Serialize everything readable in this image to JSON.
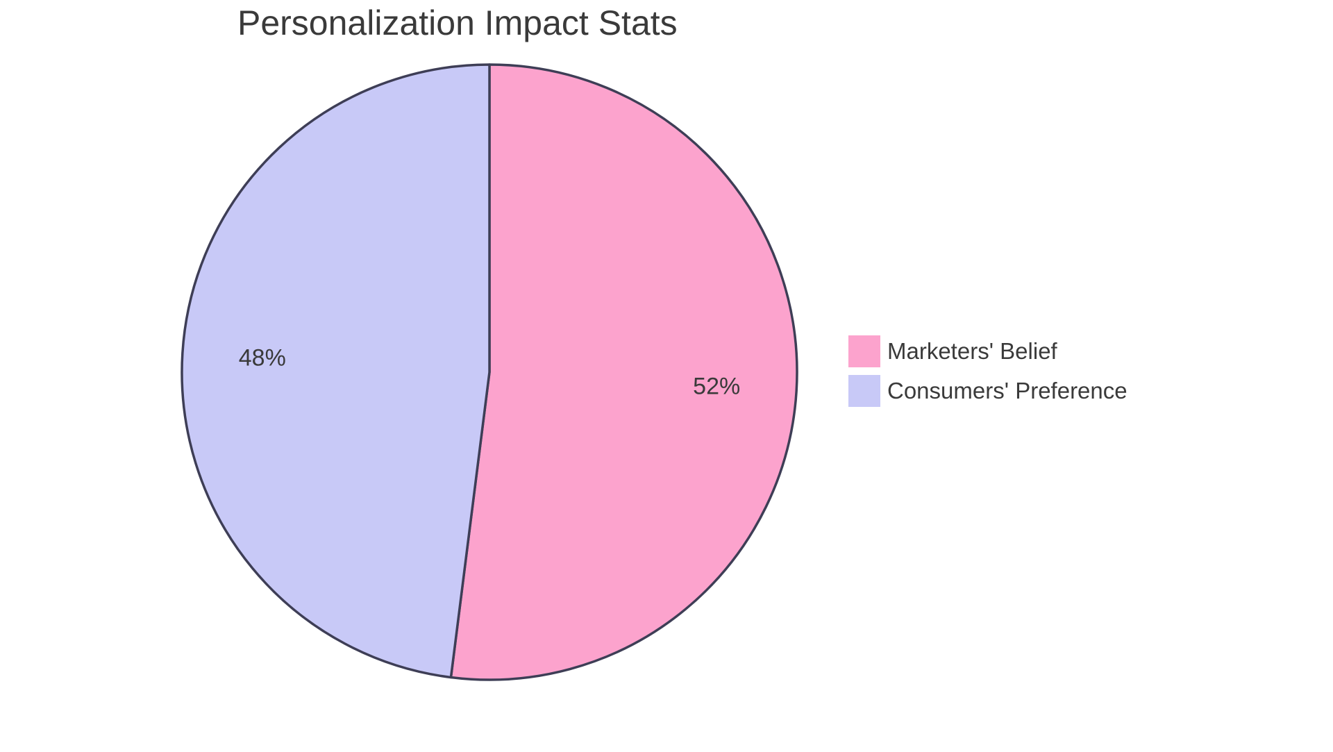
{
  "chart_data": {
    "type": "pie",
    "title": "Personalization Impact Stats",
    "labels": [
      "Marketers' Belief",
      "Consumers' Preference"
    ],
    "values": [
      52,
      48
    ],
    "slice_labels": [
      "52%",
      "48%"
    ],
    "colors": [
      "#FCA3CD",
      "#C8C9F7"
    ],
    "border_color": "#3E3E56",
    "text_color": "#3A3A3A",
    "background_color": "#FFFFFF",
    "start_angle_deg": 0,
    "direction": "clockwise",
    "legend_position": "right"
  }
}
